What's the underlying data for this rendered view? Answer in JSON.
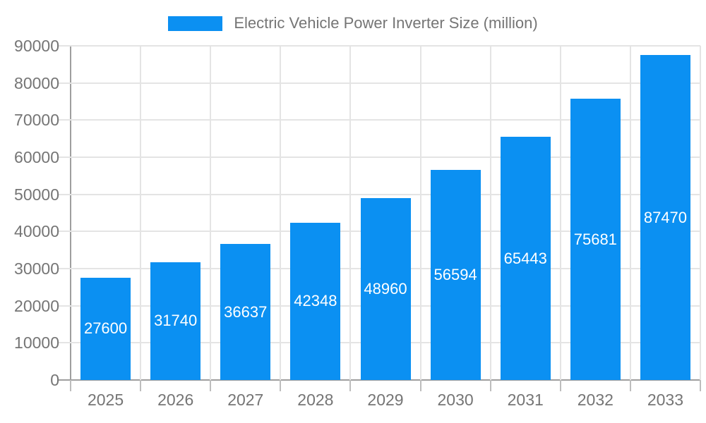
{
  "chart_data": {
    "type": "bar",
    "title": "Electric Vehicle Power Inverter Size (million)",
    "series_name": "Electric Vehicle Power Inverter Size (million)",
    "categories": [
      "2025",
      "2026",
      "2027",
      "2028",
      "2029",
      "2030",
      "2031",
      "2032",
      "2033"
    ],
    "values": [
      27600,
      31740,
      36637,
      42348,
      48960,
      56594,
      65443,
      75681,
      87470
    ],
    "data_labels": [
      "27600",
      "31740",
      "36637",
      "42348",
      "48960",
      "56594",
      "65443",
      "75681",
      "87470"
    ],
    "xlabel": "",
    "ylabel": "",
    "ylim": [
      0,
      90000
    ],
    "y_tick_step": 10000,
    "y_tick_labels": [
      "0",
      "10000",
      "20000",
      "30000",
      "40000",
      "50000",
      "60000",
      "70000",
      "80000",
      "90000"
    ],
    "grid": true,
    "legend_position": "top-center"
  },
  "legend": {
    "label": "Electric Vehicle Power Inverter Size (million)"
  },
  "colors": {
    "bar": "#0b90f2",
    "grid": "#e4e4e4",
    "axis": "#9e9e9e",
    "tick": "#bdbdbd",
    "axis_text": "#757575",
    "bar_label_text": "#ffffff",
    "background": "#ffffff"
  }
}
